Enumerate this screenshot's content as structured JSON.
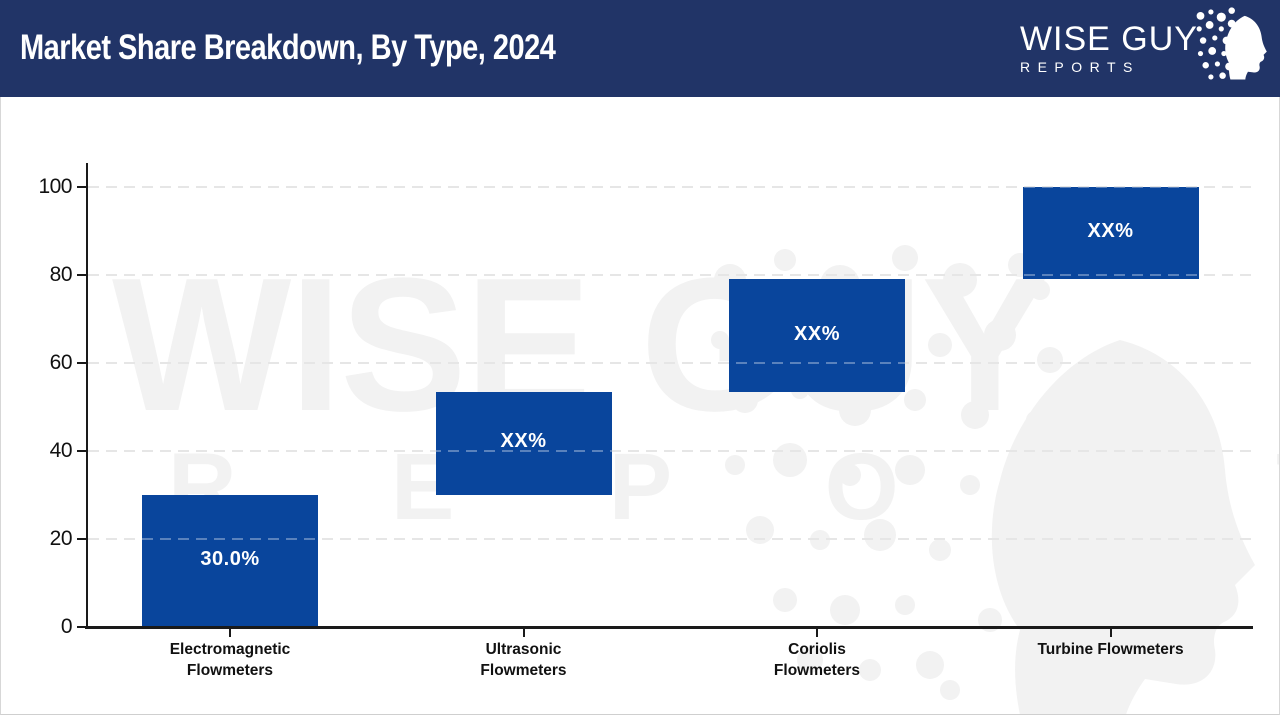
{
  "header": {
    "title": "Market Share Breakdown, By Type, 2024",
    "logo": {
      "wordmark": "WISE GUY",
      "subtitle": "REPORTS"
    }
  },
  "watermark": {
    "line1": "WISE GUY",
    "line2": "R E P O R T S"
  },
  "colors": {
    "header_bg": "#213467",
    "bar": "#09459c",
    "grid": "#d9d9d9",
    "axis_text": "#111111",
    "bar_label": "#ffffff",
    "watermark": "#f2f2f2"
  },
  "chart_data": {
    "type": "bar",
    "subtype": "waterfall",
    "title": "Market Share Breakdown, By Type, 2024",
    "categories": [
      "Electromagnetic Flowmeters",
      "Ultrasonic Flowmeters",
      "Coriolis Flowmeters",
      "Turbine Flowmeters"
    ],
    "category_lines": [
      [
        "Electromagnetic",
        "Flowmeters"
      ],
      [
        "Ultrasonic",
        "Flowmeters"
      ],
      [
        "Coriolis",
        "Flowmeters"
      ],
      [
        "Turbine Flowmeters"
      ]
    ],
    "segments": [
      {
        "category": "Electromagnetic Flowmeters",
        "start": 0,
        "end": 30,
        "label": "30.0%"
      },
      {
        "category": "Ultrasonic Flowmeters",
        "start": 30,
        "end": 53.5,
        "label": "XX%"
      },
      {
        "category": "Coriolis Flowmeters",
        "start": 53.5,
        "end": 79,
        "label": "XX%"
      },
      {
        "category": "Turbine Flowmeters",
        "start": 79,
        "end": 100,
        "label": "XX%"
      }
    ],
    "xlabel": "",
    "ylabel": "",
    "ylim": [
      0,
      100
    ],
    "yticks": [
      0,
      20,
      40,
      60,
      80,
      100
    ],
    "grid": "horizontal-dashed",
    "legend": "none"
  }
}
